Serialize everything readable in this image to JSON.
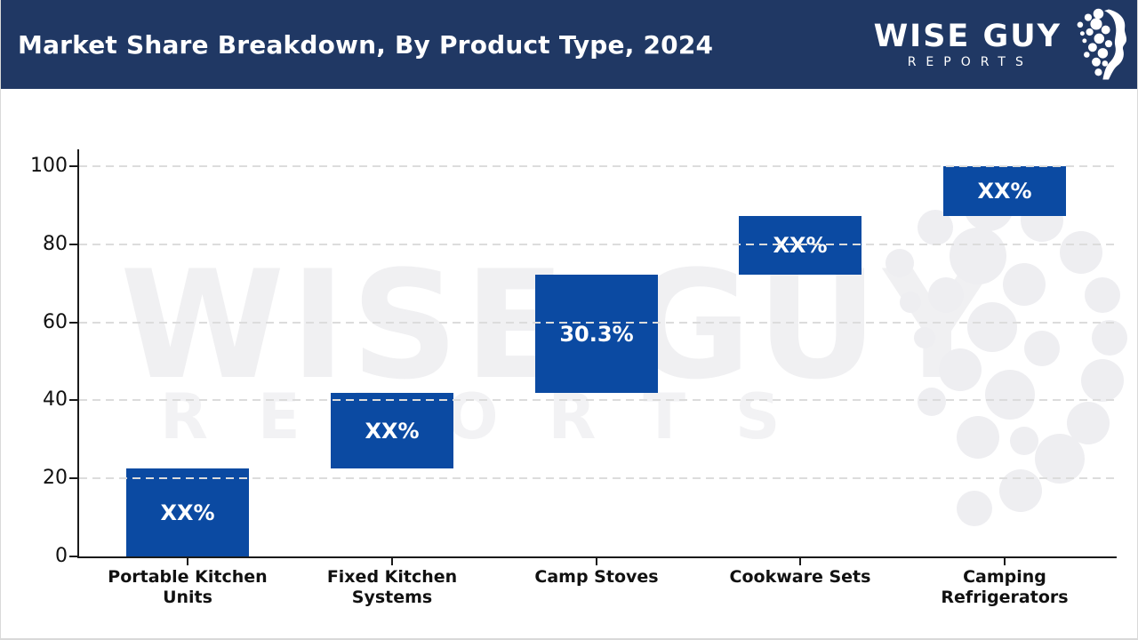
{
  "header": {
    "title": "Market Share Breakdown, By Product Type, 2024",
    "logo": {
      "line1": "WISE GUY",
      "line2": "REPORTS"
    }
  },
  "watermark": {
    "line1": "WISE GU",
    "line1b": "Y",
    "line2": "REPORTS"
  },
  "colors": {
    "header_bg": "#203864",
    "bar": "#0b4aa2",
    "axis": "#1a1a1a",
    "grid": "#dcdcdc",
    "watermark": "#f0f0f2",
    "bar_label": "#ffffff"
  },
  "chart_data": {
    "type": "bar",
    "subtype": "floating-waterfall",
    "title": "Market Share Breakdown, By Product Type, 2024",
    "categories": [
      "Portable Kitchen Units",
      "Fixed Kitchen Systems",
      "Camp Stoves",
      "Cookware Sets",
      "Camping Refrigerators"
    ],
    "category_lines": [
      [
        "Portable Kitchen",
        "Units"
      ],
      [
        "Fixed Kitchen",
        "Systems"
      ],
      [
        "Camp Stoves"
      ],
      [
        "Cookware Sets"
      ],
      [
        "Camping",
        "Refrigerators"
      ]
    ],
    "segments": [
      {
        "category": "Portable Kitchen Units",
        "start": 0,
        "end": 22.5,
        "value_label": "XX%"
      },
      {
        "category": "Fixed Kitchen Systems",
        "start": 22.5,
        "end": 41.9,
        "value_label": "XX%"
      },
      {
        "category": "Camp Stoves",
        "start": 41.9,
        "end": 72.2,
        "value_label": "30.3%"
      },
      {
        "category": "Cookware Sets",
        "start": 72.2,
        "end": 87.2,
        "value_label": "XX%"
      },
      {
        "category": "Camping Refrigerators",
        "start": 87.2,
        "end": 100,
        "value_label": "XX%"
      }
    ],
    "xlabel": "",
    "ylabel": "",
    "ylim": [
      0,
      100
    ],
    "yticks": [
      0,
      20,
      40,
      60,
      80,
      100
    ],
    "grid": "horizontal dashed",
    "legend": "none"
  }
}
